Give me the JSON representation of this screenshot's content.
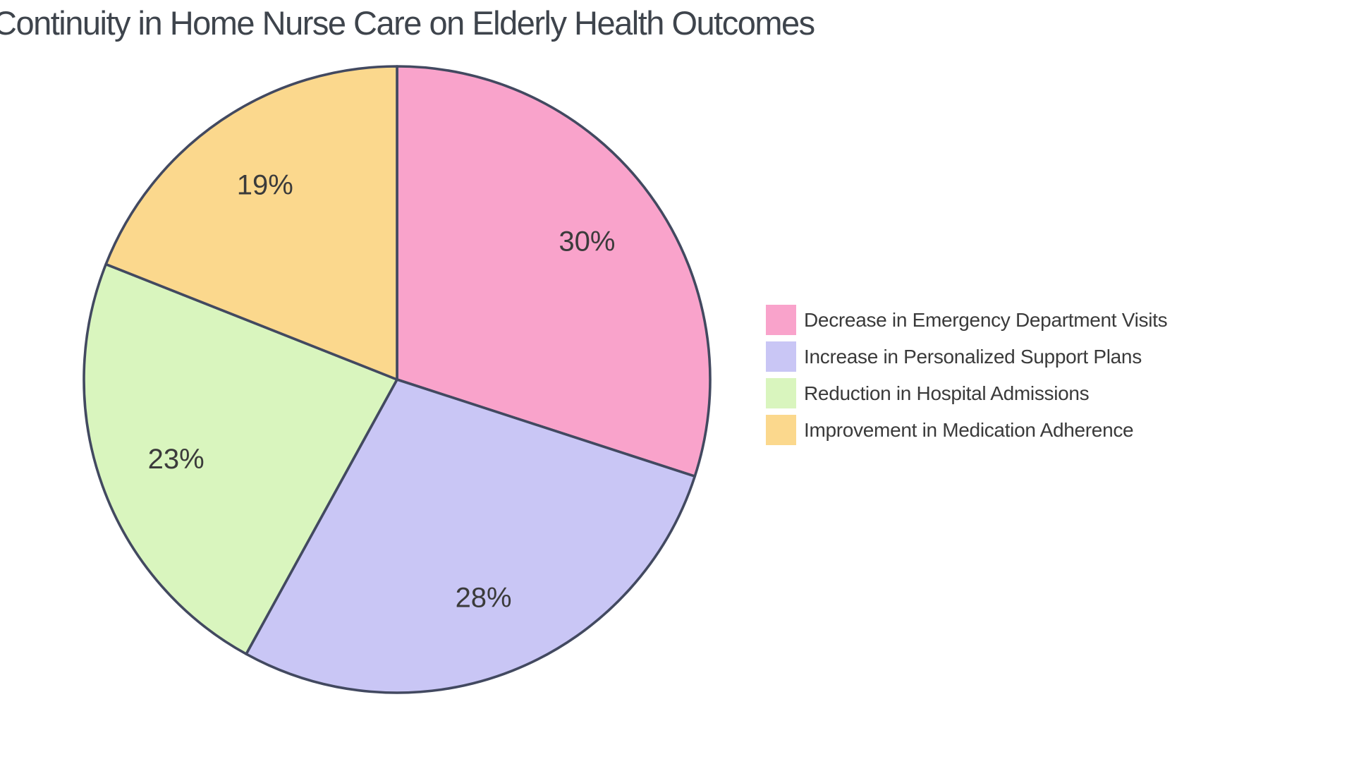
{
  "chart_data": {
    "type": "pie",
    "title": "Continuity in Home Nurse Care on Elderly Health Outcomes",
    "labels": [
      "Decrease in Emergency Department Visits",
      "Increase in Personalized Support Plans",
      "Reduction in Hospital Admissions",
      "Improvement in Medication Adherence"
    ],
    "values": [
      30,
      28,
      23,
      19
    ],
    "slice_labels": [
      "30%",
      "28%",
      "23%",
      "19%"
    ],
    "colors": [
      "#F9A3CB",
      "#C9C6F5",
      "#D9F5BE",
      "#FBD88D"
    ],
    "stroke_color": "#424960",
    "label_text_color": "#3B3B3B",
    "title_color": "#3E444C",
    "start_angle": "top",
    "direction": "clockwise",
    "legend_position": "right",
    "grid": false
  }
}
